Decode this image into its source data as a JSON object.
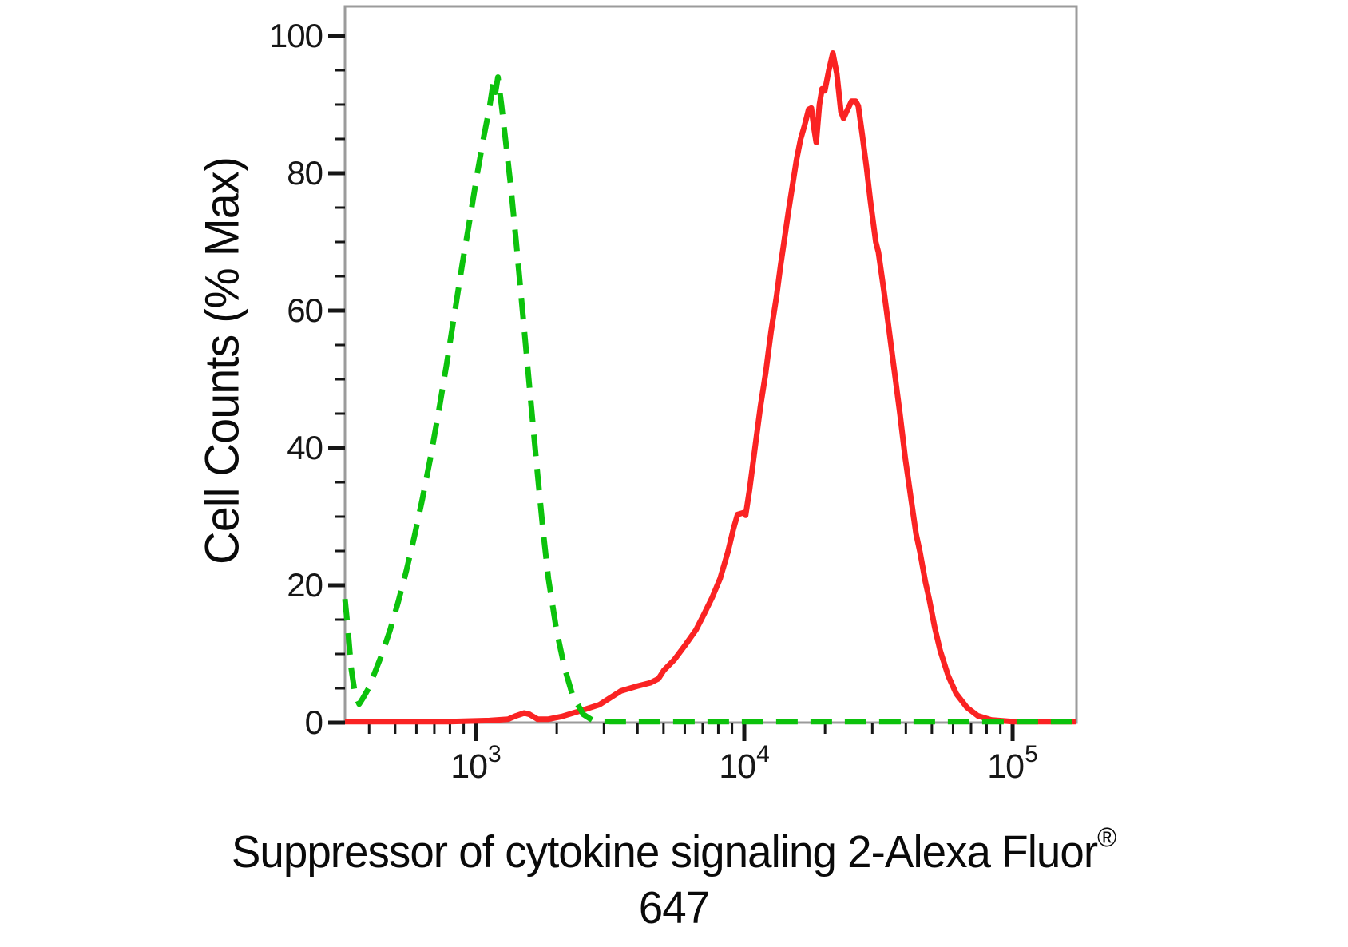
{
  "title": {
    "line1": "Suppressor of cytokine signaling 2-Alexa Fluor",
    "registered_symbol": "®",
    "line2": "647"
  },
  "y_axis": {
    "label": "Cell Counts (% Max)",
    "major_ticks": [
      0,
      20,
      40,
      60,
      80,
      100
    ],
    "minor_tick_step": 5
  },
  "x_axis": {
    "scale": "log10",
    "tick_base": "10",
    "major_tick_exponents": [
      3,
      4,
      5
    ]
  },
  "colors": {
    "background": "#ffffff",
    "frame": "#9b9b9b",
    "tick": "#161616",
    "text": "#111111",
    "green_series": "#0cc20c",
    "red_series": "#fa2323"
  },
  "chart_data": {
    "type": "line",
    "title": "Flow cytometry histogram overlay",
    "xlabel": "Suppressor of cytokine signaling 2-Alexa Fluor® 647",
    "ylabel": "Cell Counts (% Max)",
    "x_scale": "log10",
    "x_log_range": [
      2.512,
      5.238
    ],
    "y_range": [
      0,
      104.3
    ],
    "grid": false,
    "legend": "none",
    "series": [
      {
        "name": "red-solid",
        "color": "#fa2323",
        "style": "solid",
        "points": [
          [
            2.512,
            0.15
          ],
          [
            2.9,
            0.15
          ],
          [
            3.05,
            0.3
          ],
          [
            3.12,
            0.5
          ],
          [
            3.15,
            1.0
          ],
          [
            3.18,
            1.4
          ],
          [
            3.2,
            1.2
          ],
          [
            3.23,
            0.5
          ],
          [
            3.27,
            0.5
          ],
          [
            3.32,
            0.9
          ],
          [
            3.38,
            1.6
          ],
          [
            3.42,
            2.1
          ],
          [
            3.46,
            2.6
          ],
          [
            3.5,
            3.6
          ],
          [
            3.54,
            4.6
          ],
          [
            3.6,
            5.3
          ],
          [
            3.65,
            5.8
          ],
          [
            3.68,
            6.4
          ],
          [
            3.7,
            7.6
          ],
          [
            3.74,
            9.2
          ],
          [
            3.78,
            11.3
          ],
          [
            3.82,
            13.5
          ],
          [
            3.85,
            15.8
          ],
          [
            3.88,
            18.2
          ],
          [
            3.91,
            21.0
          ],
          [
            3.94,
            25.0
          ],
          [
            3.96,
            28.3
          ],
          [
            3.975,
            30.3
          ],
          [
            4.0,
            30.6
          ],
          [
            4.005,
            30.2
          ],
          [
            4.02,
            34.0
          ],
          [
            4.04,
            40.0
          ],
          [
            4.06,
            46.0
          ],
          [
            4.08,
            51.0
          ],
          [
            4.09,
            54.0
          ],
          [
            4.1,
            57.0
          ],
          [
            4.12,
            62.0
          ],
          [
            4.135,
            66.5
          ],
          [
            4.15,
            70.5
          ],
          [
            4.165,
            74.5
          ],
          [
            4.18,
            78.3
          ],
          [
            4.195,
            82.0
          ],
          [
            4.21,
            85.0
          ],
          [
            4.225,
            87.0
          ],
          [
            4.24,
            89.3
          ],
          [
            4.25,
            89.5
          ],
          [
            4.26,
            86.5
          ],
          [
            4.268,
            84.5
          ],
          [
            4.28,
            90.0
          ],
          [
            4.29,
            92.3
          ],
          [
            4.3,
            92.0
          ],
          [
            4.315,
            95.0
          ],
          [
            4.33,
            97.5
          ],
          [
            4.345,
            94.5
          ],
          [
            4.36,
            89.0
          ],
          [
            4.37,
            88.0
          ],
          [
            4.385,
            89.3
          ],
          [
            4.4,
            90.5
          ],
          [
            4.415,
            90.5
          ],
          [
            4.425,
            89.8
          ],
          [
            4.44,
            85.5
          ],
          [
            4.455,
            81.0
          ],
          [
            4.47,
            76.0
          ],
          [
            4.49,
            70.0
          ],
          [
            4.5,
            68.5
          ],
          [
            4.52,
            63.0
          ],
          [
            4.54,
            57.0
          ],
          [
            4.56,
            51.0
          ],
          [
            4.58,
            45.0
          ],
          [
            4.6,
            38.5
          ],
          [
            4.62,
            33.0
          ],
          [
            4.64,
            27.5
          ],
          [
            4.655,
            24.8
          ],
          [
            4.675,
            20.5
          ],
          [
            4.69,
            17.8
          ],
          [
            4.71,
            13.8
          ],
          [
            4.73,
            10.5
          ],
          [
            4.76,
            6.8
          ],
          [
            4.79,
            4.2
          ],
          [
            4.83,
            2.2
          ],
          [
            4.87,
            1.0
          ],
          [
            4.92,
            0.4
          ],
          [
            5.0,
            0.15
          ],
          [
            5.238,
            0.15
          ]
        ]
      },
      {
        "name": "green-dashed",
        "color": "#0cc20c",
        "style": "dashed",
        "points": [
          [
            2.512,
            18
          ],
          [
            2.522,
            14
          ],
          [
            2.535,
            8
          ],
          [
            2.55,
            4
          ],
          [
            2.565,
            2.7
          ],
          [
            2.578,
            3.5
          ],
          [
            2.6,
            5
          ],
          [
            2.625,
            7.5
          ],
          [
            2.65,
            10
          ],
          [
            2.68,
            13.5
          ],
          [
            2.71,
            17.5
          ],
          [
            2.74,
            22
          ],
          [
            2.77,
            27
          ],
          [
            2.8,
            32.5
          ],
          [
            2.83,
            38.5
          ],
          [
            2.86,
            45
          ],
          [
            2.89,
            52
          ],
          [
            2.92,
            59.5
          ],
          [
            2.95,
            67
          ],
          [
            2.98,
            74
          ],
          [
            3.005,
            80
          ],
          [
            3.03,
            85.5
          ],
          [
            3.05,
            89.5
          ],
          [
            3.062,
            92.5
          ],
          [
            3.068,
            93.5
          ],
          [
            3.073,
            91.8
          ],
          [
            3.082,
            94
          ],
          [
            3.095,
            90
          ],
          [
            3.11,
            85
          ],
          [
            3.13,
            78
          ],
          [
            3.15,
            70
          ],
          [
            3.17,
            61.5
          ],
          [
            3.19,
            53
          ],
          [
            3.21,
            44.5
          ],
          [
            3.23,
            36
          ],
          [
            3.25,
            28
          ],
          [
            3.27,
            21
          ],
          [
            3.3,
            13.5
          ],
          [
            3.33,
            8
          ],
          [
            3.36,
            4
          ],
          [
            3.4,
            1.2
          ],
          [
            3.44,
            0.2
          ],
          [
            3.5,
            0.15
          ],
          [
            5.238,
            0.15
          ]
        ]
      }
    ]
  }
}
